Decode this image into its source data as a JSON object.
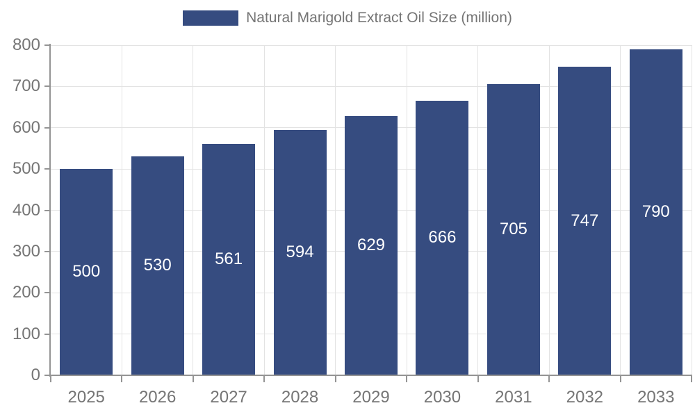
{
  "chart_data": {
    "type": "bar",
    "title": "Natural Marigold Extract Oil Size (million)",
    "categories": [
      "2025",
      "2026",
      "2027",
      "2028",
      "2029",
      "2030",
      "2031",
      "2032",
      "2033"
    ],
    "values": [
      500,
      530,
      561,
      594,
      629,
      666,
      705,
      747,
      790
    ],
    "xlabel": "",
    "ylabel": "",
    "ylim": [
      0,
      800
    ],
    "ytick_step": 100,
    "grid": true,
    "legend_position": "top-center",
    "bar_color": "#364C80",
    "value_label_color": "#ffffff",
    "axis_text_color": "#757575",
    "axis_line_color": "#949494",
    "gridline_color": "#e3e3e3"
  }
}
